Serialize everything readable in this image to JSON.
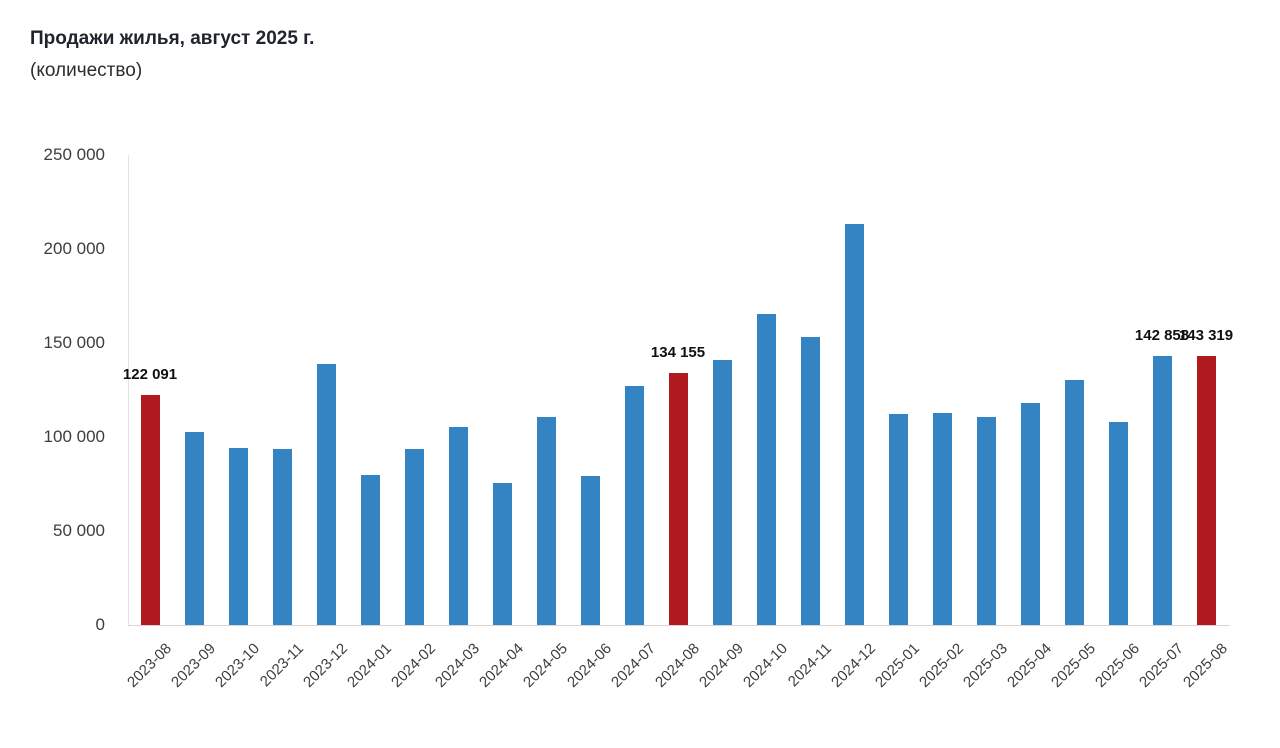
{
  "header": {
    "title": "Продажи жилья, август 2025 г.",
    "subtitle": "(количество)"
  },
  "chart_data": {
    "type": "bar",
    "title": "Продажи жилья, август 2025 г.",
    "subtitle": "(количество)",
    "xlabel": "",
    "ylabel": "",
    "grid": false,
    "legend": "none",
    "ylim": [
      0,
      250000
    ],
    "yticks": [
      0,
      50000,
      100000,
      150000,
      200000,
      250000
    ],
    "ytick_labels": [
      "0",
      "50 000",
      "100 000",
      "150 000",
      "200 000",
      "250 000"
    ],
    "categories": [
      "2023-08",
      "2023-09",
      "2023-10",
      "2023-11",
      "2023-12",
      "2024-01",
      "2024-02",
      "2024-03",
      "2024-04",
      "2024-05",
      "2024-06",
      "2024-07",
      "2024-08",
      "2024-09",
      "2024-10",
      "2024-11",
      "2024-12",
      "2025-01",
      "2025-02",
      "2025-03",
      "2025-04",
      "2025-05",
      "2025-06",
      "2025-07",
      "2025-08"
    ],
    "values": [
      122091,
      102700,
      94000,
      93400,
      138800,
      80000,
      93800,
      105400,
      75300,
      110600,
      79000,
      127100,
      134155,
      140700,
      165400,
      153400,
      213300,
      112000,
      112900,
      110600,
      118100,
      130300,
      107800,
      142858,
      143319
    ],
    "highlight_indices": [
      0,
      12,
      24
    ],
    "data_labels": [
      {
        "index": 0,
        "text": "122 091"
      },
      {
        "index": 12,
        "text": "134 155"
      },
      {
        "index": 23,
        "text": "142 858"
      },
      {
        "index": 24,
        "text": "143 319"
      }
    ],
    "colors": {
      "bar": "#3484c4",
      "highlight": "#b0191d",
      "axis_line": "#d6d6d6",
      "tick_text": "#3d3d3d",
      "label_text": "#101010",
      "title_text": "#1e242b"
    }
  }
}
